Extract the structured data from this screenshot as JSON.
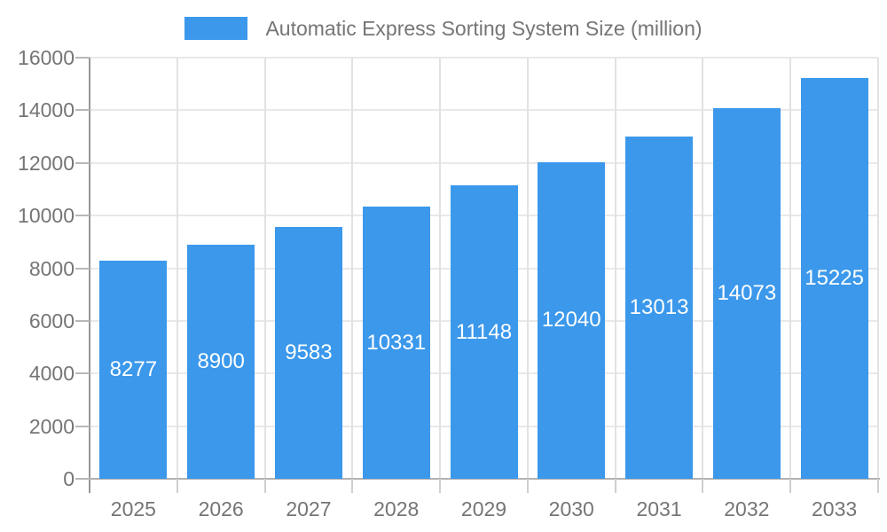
{
  "legend": {
    "label": "Automatic Express Sorting System Size (million)"
  },
  "colors": {
    "bar": "#3b98eb",
    "axis_text": "#757575",
    "bar_label_text": "#ffffff",
    "y_axis_line": "#979797",
    "x_axis_line": "#b2b2b2",
    "h_gridline": "#e9e9e9",
    "v_gridline": "#e2e2e2",
    "background": "#ffffff"
  },
  "chart_data": {
    "type": "bar",
    "title": "Automatic Express Sorting System Size (million)",
    "categories": [
      "2025",
      "2026",
      "2027",
      "2028",
      "2029",
      "2030",
      "2031",
      "2032",
      "2033"
    ],
    "values": [
      8277,
      8900,
      9583,
      10331,
      11148,
      12040,
      13013,
      14073,
      15225
    ],
    "xlabel": "",
    "ylabel": "",
    "ylim": [
      0,
      16000
    ],
    "ytick_step": 2000,
    "yticks": [
      0,
      2000,
      4000,
      6000,
      8000,
      10000,
      12000,
      14000,
      16000
    ],
    "grid": true,
    "legend_position": "top",
    "value_labels": "inside-center",
    "bar_color": "#3b98eb"
  }
}
